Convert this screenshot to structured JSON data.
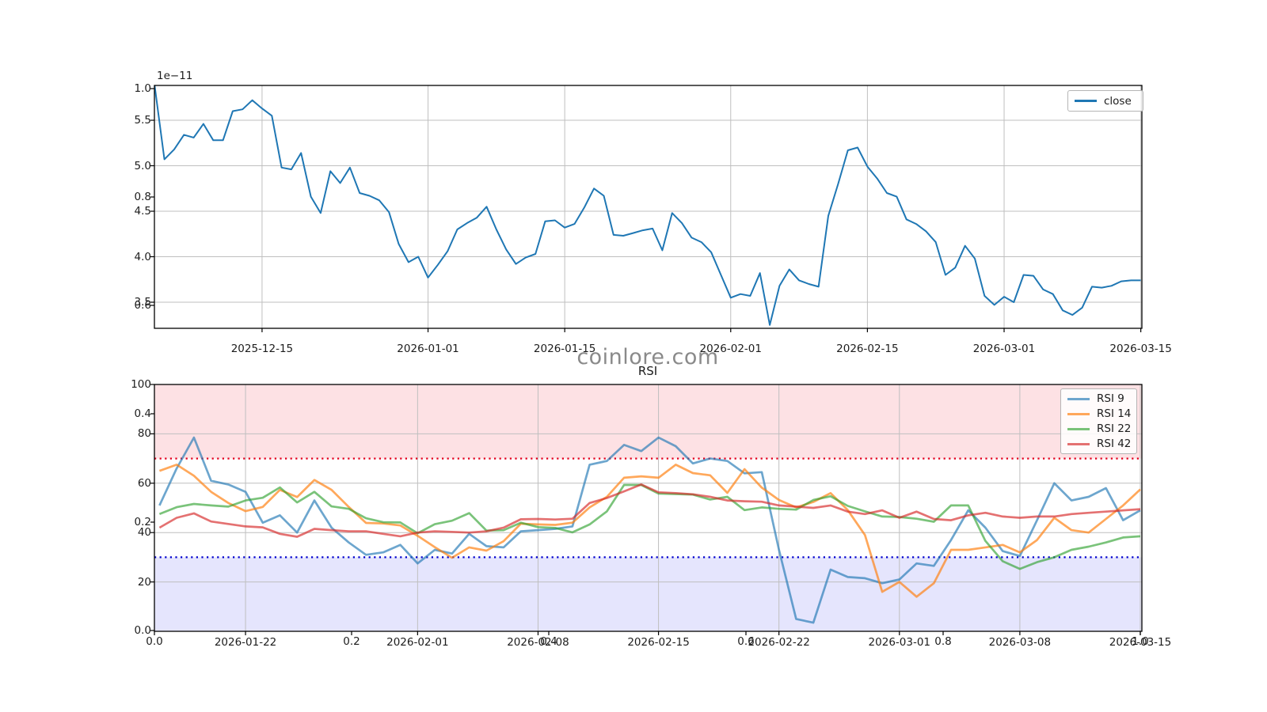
{
  "watermark": "coinlore.com",
  "stray_axis": {
    "x_ticks": [
      "0.0",
      "0.2",
      "0.4",
      "0.6",
      "0.8",
      "1.0"
    ],
    "y_ticks": [
      "1.0",
      "0.8",
      "0.6",
      "0.4",
      "0.2",
      "0.0"
    ]
  },
  "chart_data": [
    {
      "type": "line",
      "title": "",
      "unit_scale": "1e−11",
      "legend_position": "upper right",
      "grid": true,
      "x_start_date": "2025-12-04",
      "x_tick_labels": [
        "2025-12-15",
        "2026-01-01",
        "2026-01-15",
        "2026-02-01",
        "2026-02-15",
        "2026-03-01",
        "2026-03-15"
      ],
      "x_tick_days": [
        11,
        28,
        42,
        59,
        73,
        87,
        101
      ],
      "y_tick_labels": [
        "5.5",
        "5.0",
        "4.5",
        "4.0",
        "3.5"
      ],
      "y_ticks": [
        5.5,
        5.0,
        4.5,
        4.0,
        3.5
      ],
      "ylim": [
        3.21,
        5.91
      ],
      "series": [
        {
          "name": "close",
          "color": "#1f77b4",
          "values_scale": "1e-11",
          "values": [
            5.88,
            5.07,
            5.18,
            5.34,
            5.31,
            5.46,
            5.28,
            5.28,
            5.6,
            5.62,
            5.72,
            5.63,
            5.55,
            4.98,
            4.96,
            5.14,
            4.66,
            4.48,
            4.94,
            4.81,
            4.98,
            4.7,
            4.67,
            4.62,
            4.49,
            4.14,
            3.94,
            4.0,
            3.77,
            3.91,
            4.06,
            4.3,
            4.37,
            4.43,
            4.55,
            4.3,
            4.08,
            3.92,
            3.99,
            4.03,
            4.39,
            4.4,
            4.32,
            4.36,
            4.54,
            4.75,
            4.67,
            4.24,
            4.23,
            4.26,
            4.29,
            4.31,
            4.07,
            4.48,
            4.37,
            4.21,
            4.16,
            4.05,
            3.8,
            3.55,
            3.59,
            3.57,
            3.82,
            3.25,
            3.68,
            3.86,
            3.74,
            3.7,
            3.67,
            4.45,
            4.8,
            5.17,
            5.2,
            4.99,
            4.86,
            4.7,
            4.66,
            4.41,
            4.36,
            4.28,
            4.16,
            3.8,
            3.88,
            4.12,
            3.98,
            3.57,
            3.47,
            3.56,
            3.5,
            3.8,
            3.79,
            3.64,
            3.59,
            3.41,
            3.36,
            3.44,
            3.67,
            3.66,
            3.68,
            3.73,
            3.74,
            3.74
          ]
        }
      ]
    },
    {
      "type": "line",
      "title": "RSI",
      "legend_position": "upper right",
      "grid": true,
      "x_start_date": "2026-01-17",
      "x_tick_labels": [
        "2026-01-22",
        "2026-02-01",
        "2026-02-08",
        "2026-02-15",
        "2026-02-22",
        "2026-03-01",
        "2026-03-08",
        "2026-03-15"
      ],
      "x_tick_days": [
        5,
        15,
        22,
        29,
        36,
        43,
        50,
        57
      ],
      "y_tick_labels": [
        "100",
        "80",
        "60",
        "40",
        "20"
      ],
      "y_ticks": [
        100,
        80,
        60,
        40,
        20
      ],
      "ylim": [
        0,
        100
      ],
      "overbought_level": 70,
      "oversold_level": 30,
      "overbought_fill": "rgba(240,20,47,0.13)",
      "oversold_fill": "rgba(40,40,235,0.12)",
      "overbought_line_color": "#e3001e",
      "oversold_line_color": "#0000cd",
      "series": [
        {
          "name": "RSI 9",
          "color": "rgba(31,119,180,0.65)",
          "values": [
            51,
            66,
            78.5,
            61,
            59.5,
            56.5,
            44,
            47,
            40,
            53,
            42,
            36,
            31,
            32,
            35,
            27.5,
            33,
            31.5,
            39.5,
            34.5,
            34,
            40.5,
            41,
            41.5,
            42.5,
            67.5,
            69,
            75.5,
            73,
            78.5,
            75,
            68,
            70,
            69,
            64,
            64.5,
            33,
            5,
            3.5,
            25,
            22,
            21.5,
            19.5,
            21,
            27.5,
            26.5,
            37,
            49,
            42,
            32.5,
            30.5,
            45,
            60,
            53,
            54.5,
            58,
            45,
            49
          ]
        },
        {
          "name": "RSI 14",
          "color": "rgba(255,127,14,0.68)",
          "values": [
            65,
            67.5,
            63,
            56.5,
            52,
            48.7,
            50.4,
            57.3,
            54.4,
            61.3,
            57.3,
            50.4,
            43.9,
            43.7,
            42.9,
            38.7,
            34.1,
            29.8,
            34,
            32.7,
            36.5,
            43.6,
            43.3,
            43.1,
            44,
            50.2,
            54.5,
            62.2,
            62.8,
            62.2,
            67.5,
            64.1,
            63.2,
            56.1,
            65.7,
            58.2,
            53.2,
            50.2,
            52.4,
            56,
            49.1,
            39,
            16,
            20,
            14,
            19.5,
            33,
            33,
            34,
            35,
            32,
            37,
            46,
            41,
            40,
            45.5,
            51,
            57.5
          ]
        },
        {
          "name": "RSI 22",
          "color": "rgba(44,160,44,0.63)",
          "values": [
            47.5,
            50.3,
            51.6,
            51,
            50.5,
            53,
            54.1,
            58.3,
            52.2,
            56.5,
            50.6,
            49.6,
            45.8,
            44.2,
            44.1,
            39.7,
            43.4,
            44.8,
            47.9,
            40.8,
            41,
            44,
            42.2,
            41.9,
            40.1,
            43.3,
            48.6,
            59.3,
            59.3,
            55.8,
            55.6,
            55.4,
            53.4,
            54.5,
            49.1,
            50.2,
            49.6,
            49.3,
            53.2,
            54.7,
            50.8,
            48.6,
            46.5,
            46.3,
            45.6,
            44.4,
            51,
            51,
            36.6,
            28.4,
            25.3,
            28,
            30,
            33,
            34.3,
            36,
            38,
            38.5
          ]
        },
        {
          "name": "RSI 42",
          "color": "rgba(214,39,40,0.66)",
          "values": [
            42,
            46,
            47.8,
            44.5,
            43.5,
            42.5,
            42.1,
            39.5,
            38.3,
            41.5,
            41,
            40.5,
            40.5,
            39.5,
            38.5,
            40,
            40.5,
            40.3,
            40,
            40.5,
            42,
            45.4,
            45.5,
            45.3,
            45.6,
            52,
            54,
            56.7,
            59.5,
            56.3,
            56,
            55.5,
            54.5,
            53,
            52.7,
            52.5,
            51,
            50.5,
            50,
            51,
            48.5,
            47.5,
            49,
            46,
            48.5,
            45.5,
            45,
            47,
            48,
            46.5,
            46,
            46.5,
            46.5,
            47.5,
            48,
            48.5,
            49,
            49.5
          ]
        }
      ]
    }
  ]
}
